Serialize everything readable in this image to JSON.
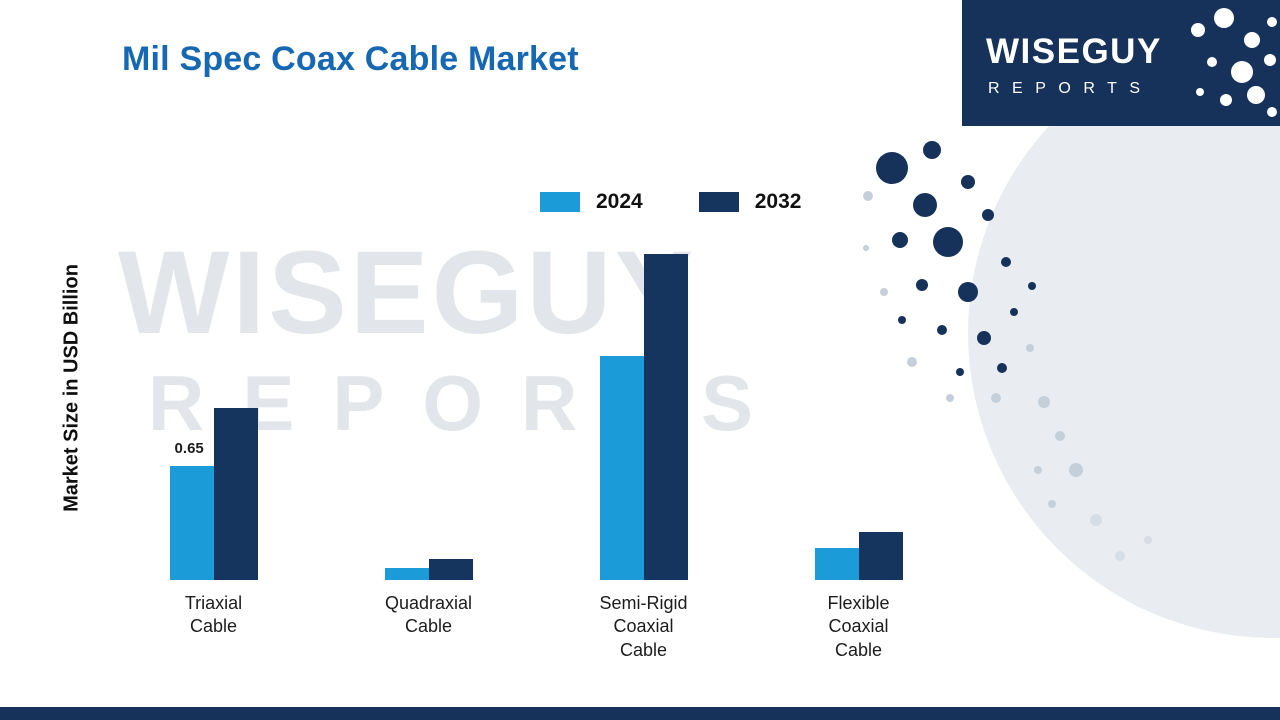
{
  "title": "Mil Spec Coax Cable Market",
  "logo": {
    "name": "WISEGUY",
    "subtitle": "REPORTS"
  },
  "watermark": {
    "line1": "WISEGUY",
    "line2": "REPORTS"
  },
  "colors": {
    "title": "#1668b3",
    "series_2024": "#1b9cd8",
    "series_2032": "#16355e",
    "logo_bg": "#16325a",
    "bottom_bar": "#16325a",
    "circle": "#e9edf1",
    "watermark": "#e2e6eb"
  },
  "chart_data": {
    "type": "bar",
    "title": "Mil Spec Coax Cable Market",
    "xlabel": "",
    "ylabel": "Market Size in USD Billion",
    "ylim": [
      0,
      2
    ],
    "grid": false,
    "legend_position": "top-center",
    "categories": [
      "Triaxial Cable",
      "Quadraxial Cable",
      "Semi-Rigid Coaxial Cable",
      "Flexible Coaxial Cable"
    ],
    "category_lines": [
      [
        "Triaxial",
        "Cable"
      ],
      [
        "Quadraxial",
        "Cable"
      ],
      [
        "Semi-Rigid",
        "Coaxial",
        "Cable"
      ],
      [
        "Flexible",
        "Coaxial",
        "Cable"
      ]
    ],
    "series": [
      {
        "name": "2024",
        "color": "#1b9cd8",
        "values": [
          0.65,
          0.07,
          1.27,
          0.18
        ]
      },
      {
        "name": "2032",
        "color": "#16355e",
        "values": [
          0.98,
          0.12,
          1.85,
          0.27
        ]
      }
    ],
    "bar_labels": [
      {
        "series_index": 0,
        "category_index": 0,
        "text": "0.65"
      }
    ]
  }
}
